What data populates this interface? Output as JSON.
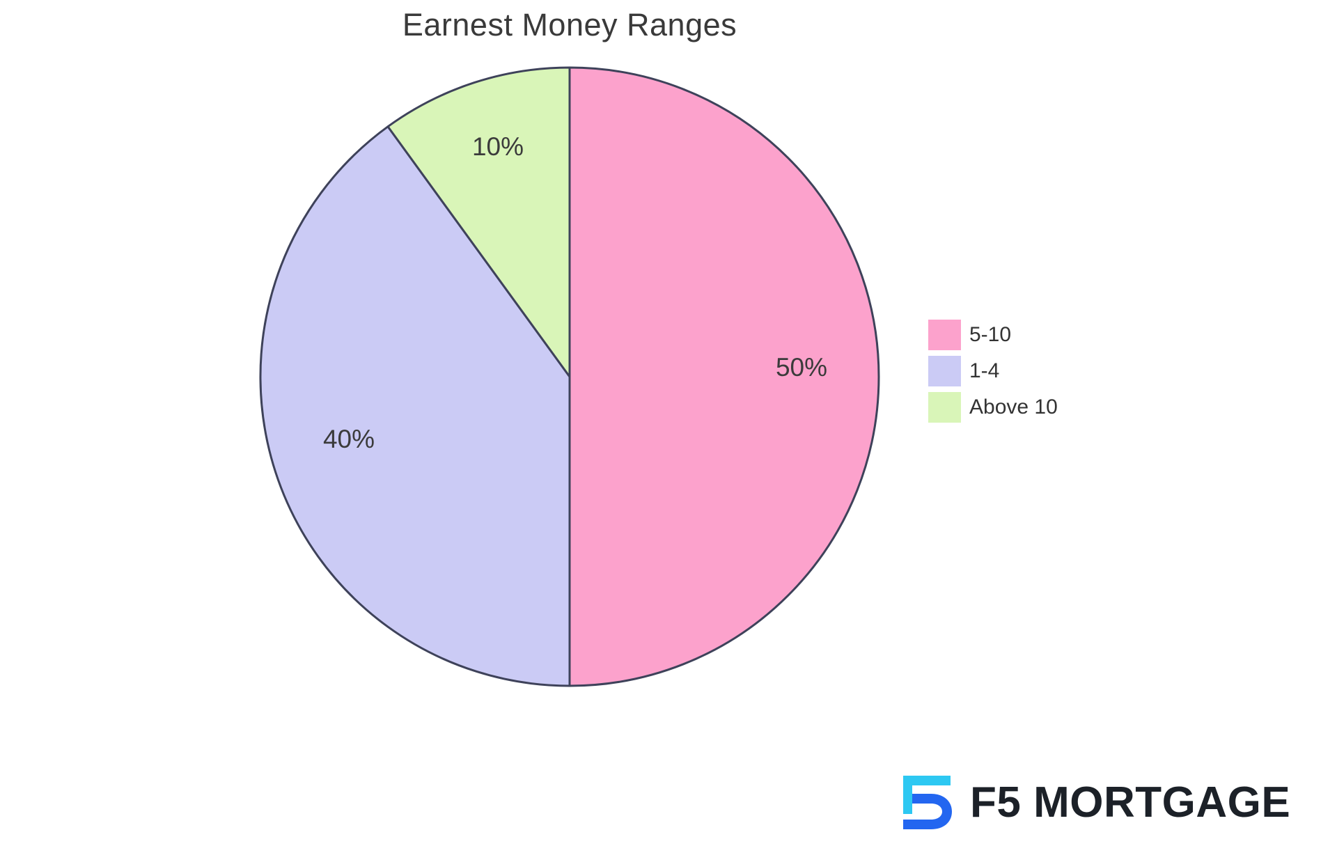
{
  "chart_data": {
    "type": "pie",
    "title": "Earnest Money Ranges",
    "labels": [
      "5-10",
      "1-4",
      "Above 10"
    ],
    "values": [
      50,
      40,
      10
    ],
    "value_labels": [
      "50%",
      "40%",
      "10%"
    ],
    "colors": [
      "#FCA2CC",
      "#CBCBF5",
      "#D9F5B8"
    ],
    "edge_color": "#3E425A",
    "text_color": "#3A3A3A",
    "start_angle": "top",
    "direction": "clockwise",
    "legend_position": "center-right",
    "legend_entries": [
      {
        "label": "5-10",
        "color": "#FCA2CC"
      },
      {
        "label": "1-4",
        "color": "#CBCBF5"
      },
      {
        "label": "Above 10",
        "color": "#D9F5B8"
      }
    ]
  },
  "logo": {
    "text": "F5 MORTGAGE",
    "colors": {
      "cyan": "#2DC8F2",
      "blue": "#2366F0",
      "text": "#1C2128"
    }
  }
}
